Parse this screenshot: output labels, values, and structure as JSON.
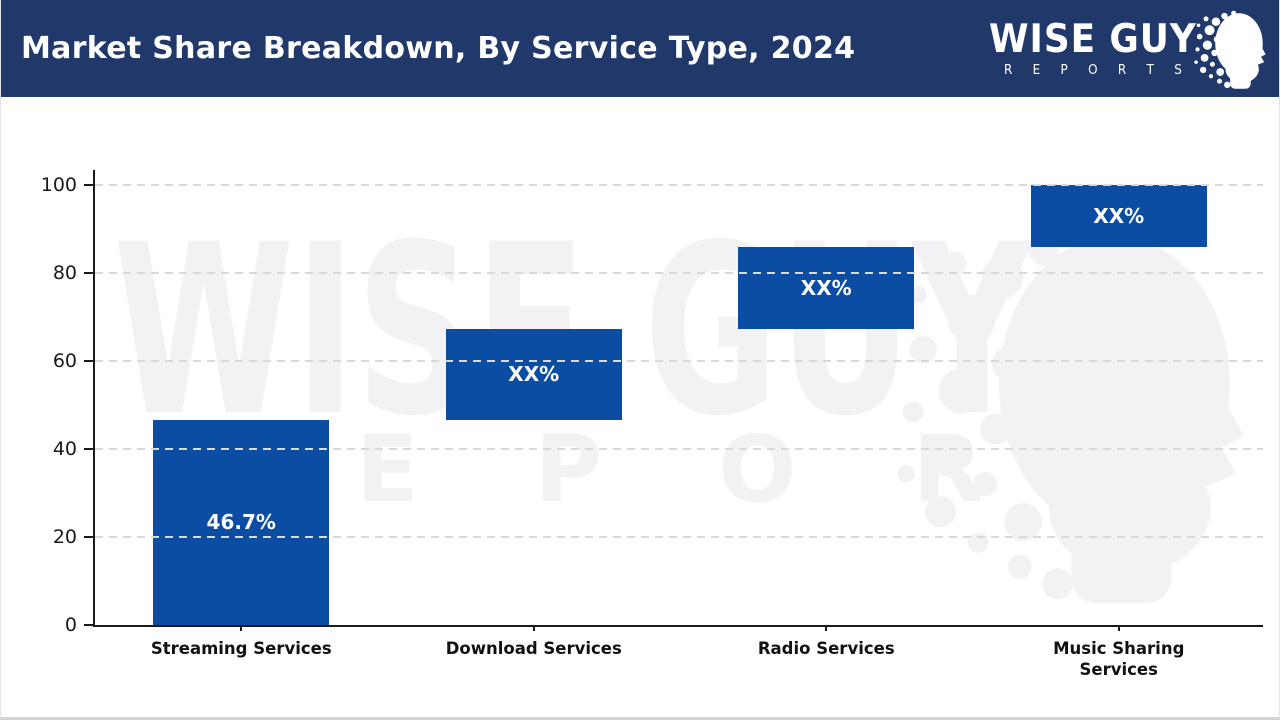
{
  "header": {
    "title": "Market Share Breakdown, By Service Type, 2024",
    "logo": {
      "line1": "WISE GUY",
      "line2": "R E P O R T S"
    }
  },
  "watermark": {
    "line1": "WISE GUY",
    "line2": "R E P O R T S"
  },
  "colors": {
    "header_bg": "#21386b",
    "bar": "#0b4da2",
    "bar_label": "#ffffff",
    "grid": "#d9d9d9",
    "axis": "#1a1a1a",
    "watermark": "#f2f2f4"
  },
  "chart_data": {
    "type": "bar",
    "subtype": "waterfall",
    "title": "Market Share Breakdown, By Service Type, 2024",
    "categories": [
      "Streaming Services",
      "Download Services",
      "Radio Services",
      "Music Sharing Services"
    ],
    "segments": [
      {
        "category": "Streaming Services",
        "label": "46.7%",
        "start": 0,
        "end": 46.7
      },
      {
        "category": "Download Services",
        "label": "XX%",
        "start": 46.7,
        "end": 67.3
      },
      {
        "category": "Radio Services",
        "label": "XX%",
        "start": 67.3,
        "end": 85.8
      },
      {
        "category": "Music Sharing Services",
        "label": "XX%",
        "start": 85.8,
        "end": 100
      }
    ],
    "ylim": [
      0,
      100
    ],
    "yticks": [
      0,
      20,
      40,
      60,
      80,
      100
    ],
    "xlabel": "",
    "ylabel": "",
    "grid": "horizontal-dashed",
    "legend": "none"
  }
}
